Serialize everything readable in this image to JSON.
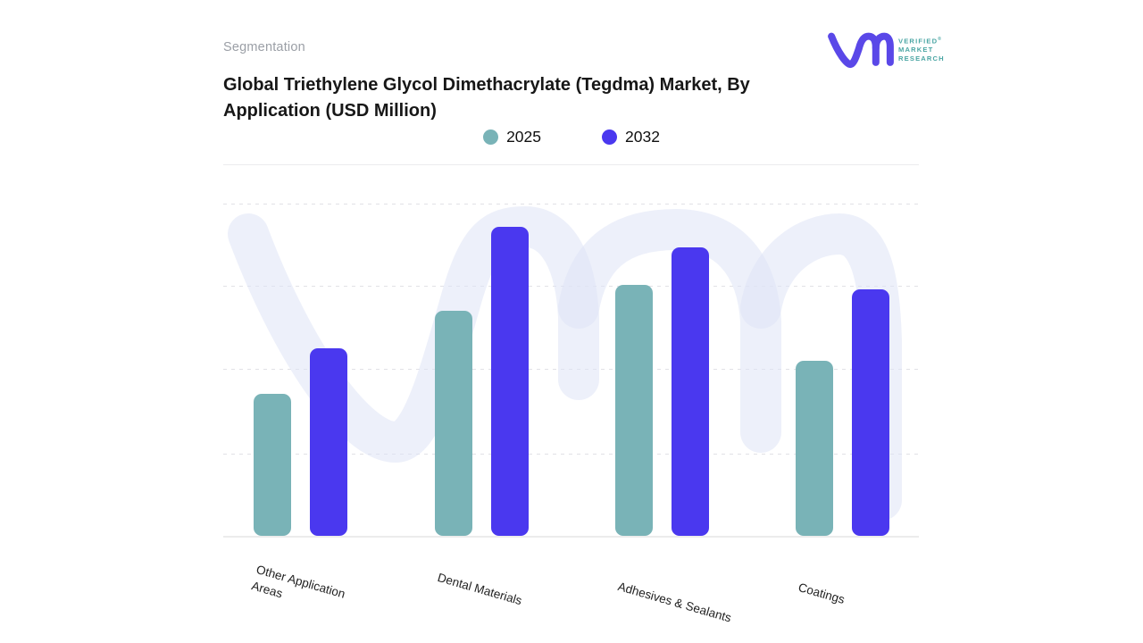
{
  "header": {
    "eyebrow": "Segmentation",
    "title_line1": "Global Triethylene Glycol Dimethacrylate (Tegdma) Market, By",
    "title_line2": "Application (USD Million)"
  },
  "logo": {
    "brand": "Verified Market Research",
    "line1": "VERIFIED",
    "registered": "®",
    "line2": "MARKET",
    "line3": "RESEARCH",
    "mark_color": "#5A48E8",
    "text_color": "#4BA6A4"
  },
  "chart_data": {
    "type": "bar",
    "title": "Global Triethylene Glycol Dimethacrylate (Tegdma) Market, By Application (USD Million)",
    "categories": [
      "Other Application\nAreas",
      "Dental Materials",
      "Adhesives & Sealants",
      "Coatings"
    ],
    "series": [
      {
        "name": "2025",
        "color": "#79B3B7",
        "values": [
          1.7,
          2.7,
          3.0,
          2.1
        ]
      },
      {
        "name": "2032",
        "color": "#4A38EF",
        "values": [
          2.25,
          3.7,
          3.45,
          2.95
        ]
      }
    ],
    "xlabel": "",
    "ylabel": "",
    "ylim": [
      0,
      4
    ],
    "units": "USD Million (y-axis tick values not shown; bar values estimated in gridline units)",
    "grid": "horizontal-dashed",
    "y_tick_labels_visible": false,
    "legend_position": "top-center",
    "x_label_rotation_deg": 16
  },
  "watermark": {
    "text": "vm",
    "color": "#EDF0FA"
  }
}
